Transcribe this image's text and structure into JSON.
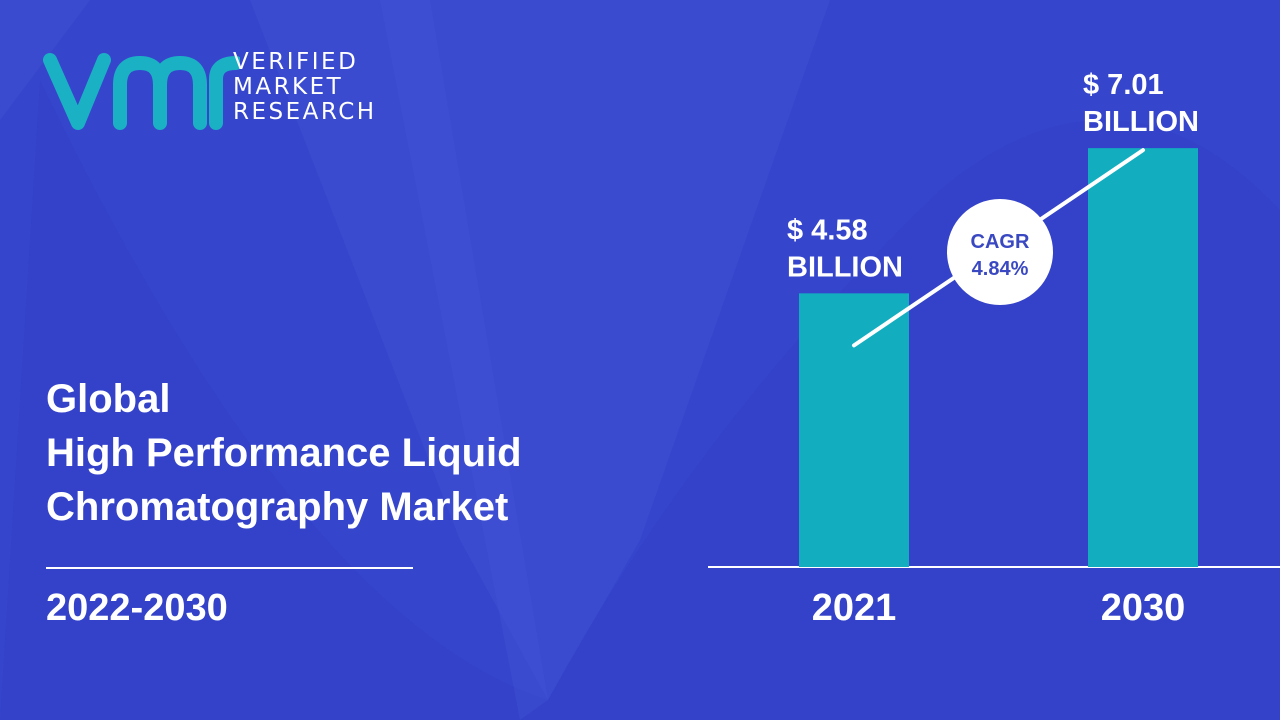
{
  "brand": {
    "logo_mark": "vmr",
    "name_lines": [
      "VERIFIED",
      "MARKET",
      "RESEARCH"
    ],
    "colors": {
      "logo": "#1bb1c4",
      "background": "#3b4bd0",
      "bar": "#12aec0",
      "text": "#ffffff",
      "cagr_text": "#3a49c2"
    }
  },
  "title_lines": [
    "Global",
    "High Performance Liquid",
    "Chromatography Market"
  ],
  "period": "2022-2030",
  "chart_data": {
    "type": "bar",
    "categories": [
      "2021",
      "2030"
    ],
    "values": [
      4.58,
      7.01
    ],
    "value_labels": [
      [
        "$ 4.58",
        "BILLION"
      ],
      [
        "$ 7.01",
        "BILLION"
      ]
    ],
    "unit": "billion USD",
    "annotation": {
      "lines": [
        "CAGR",
        "4.84%"
      ]
    },
    "trend_arrow": true
  }
}
